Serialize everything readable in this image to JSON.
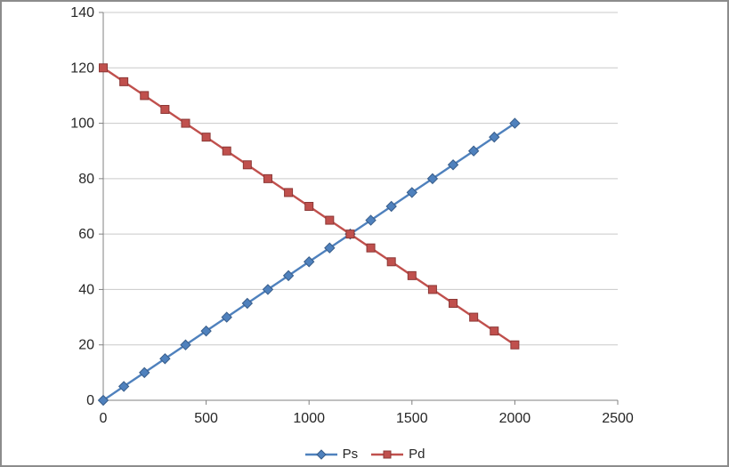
{
  "chart_data": {
    "type": "line",
    "title": "",
    "xlabel": "",
    "ylabel": "",
    "xlim": [
      0,
      2500
    ],
    "ylim": [
      0,
      140
    ],
    "x_ticks": [
      0,
      500,
      1000,
      1500,
      2000,
      2500
    ],
    "y_ticks": [
      0,
      20,
      40,
      60,
      80,
      100,
      120,
      140
    ],
    "grid": "horizontal",
    "legend_position": "bottom",
    "x": [
      0,
      100,
      200,
      300,
      400,
      500,
      600,
      700,
      800,
      900,
      1000,
      1100,
      1200,
      1300,
      1400,
      1500,
      1600,
      1700,
      1800,
      1900,
      2000
    ],
    "series": [
      {
        "name": "Ps",
        "marker": "diamond",
        "color": "#4F81BD",
        "marker_border": "#385D8A",
        "values": [
          0,
          5,
          10,
          15,
          20,
          25,
          30,
          35,
          40,
          45,
          50,
          55,
          60,
          65,
          70,
          75,
          80,
          85,
          90,
          95,
          100
        ]
      },
      {
        "name": "Pd",
        "marker": "square",
        "color": "#C0504D",
        "marker_border": "#8C3836",
        "values": [
          120,
          115,
          110,
          105,
          100,
          95,
          90,
          85,
          80,
          75,
          70,
          65,
          60,
          55,
          50,
          45,
          40,
          35,
          30,
          25,
          20
        ]
      }
    ],
    "colors": {
      "gridline": "#c9c9c9",
      "axis": "#808080",
      "background": "#ffffff",
      "text": "#262626"
    }
  }
}
